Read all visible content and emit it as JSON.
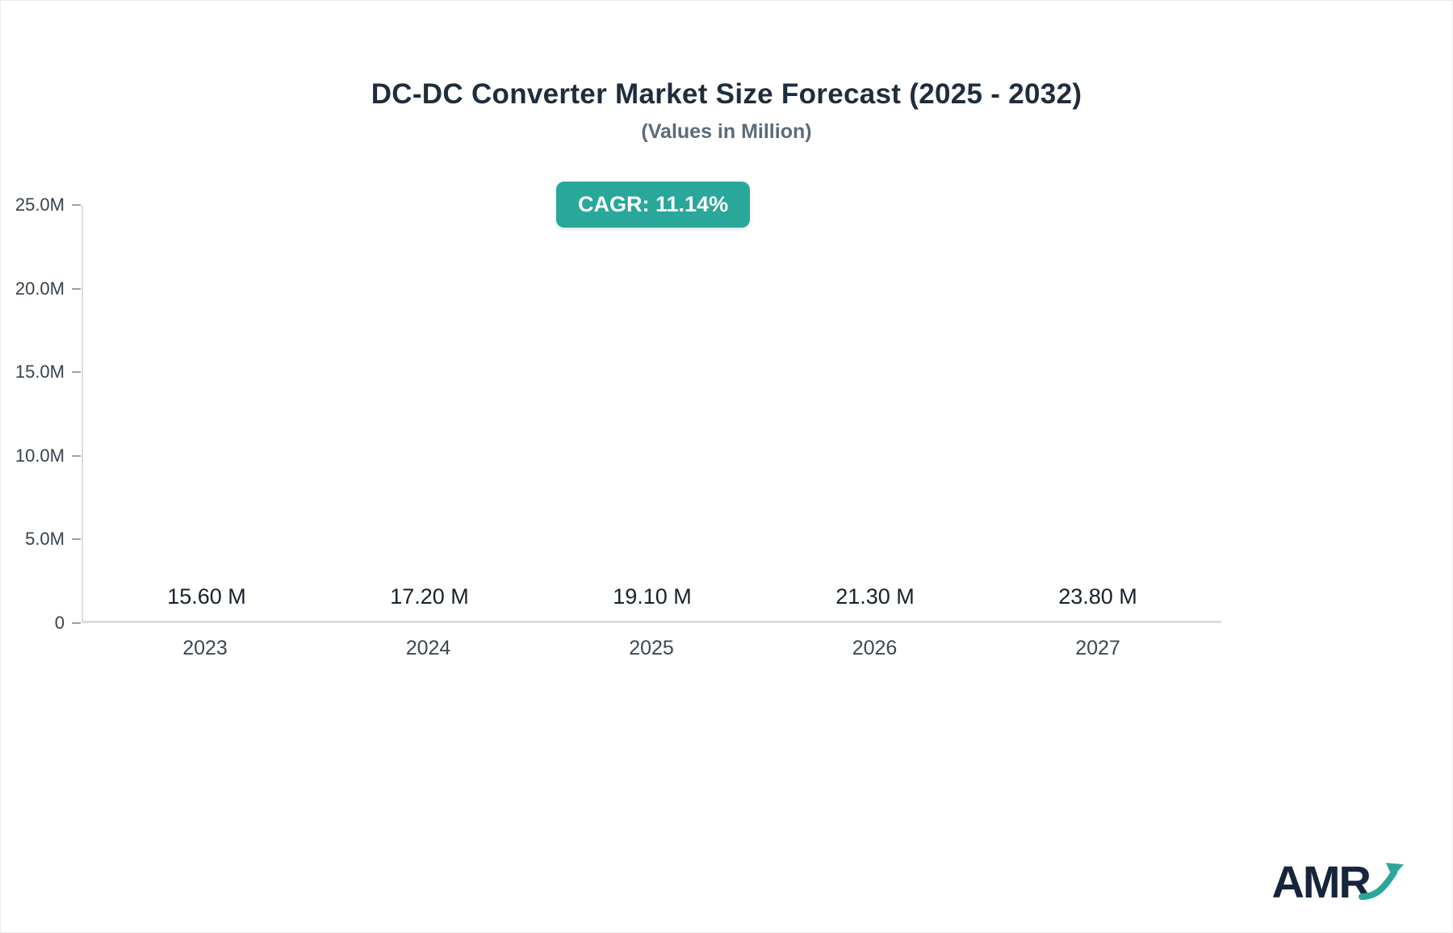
{
  "page": {
    "title": "DC-DC Converter Market Size Forecast (2025 - 2032)",
    "subtitle": "(Values in Million)",
    "cagr_label": "CAGR: 11.14%",
    "logo_text": "AMR"
  },
  "colors": {
    "accent": "#2aa79b",
    "bar_top": "#2ea195",
    "bar_bottom": "#4ac3b2",
    "bar_side": "#1f857b",
    "title_text": "#1f2d3d",
    "subtitle_text": "#5a6b7b",
    "axis_text": "#3c4854"
  },
  "chart_data": {
    "type": "bar",
    "title": "DC-DC Converter Market Size Forecast (2025 - 2032)",
    "subtitle": "(Values in Million)",
    "annotation": "CAGR: 11.14%",
    "unit": "Million",
    "categories": [
      "2023",
      "2024",
      "2025",
      "2026",
      "2027"
    ],
    "values": [
      15.6,
      17.2,
      19.1,
      21.3,
      23.8
    ],
    "value_labels": [
      "15.60 M",
      "17.20 M",
      "19.10 M",
      "21.30 M",
      "23.80 M"
    ],
    "ylim": [
      0,
      25
    ],
    "yticks": [
      {
        "label": "0",
        "value": 0
      },
      {
        "label": "5.0M",
        "value": 5
      },
      {
        "label": "10.0M",
        "value": 10
      },
      {
        "label": "15.0M",
        "value": 15
      },
      {
        "label": "20.0M",
        "value": 20
      },
      {
        "label": "25.0M",
        "value": 25
      }
    ],
    "grid": false,
    "legend": false
  }
}
